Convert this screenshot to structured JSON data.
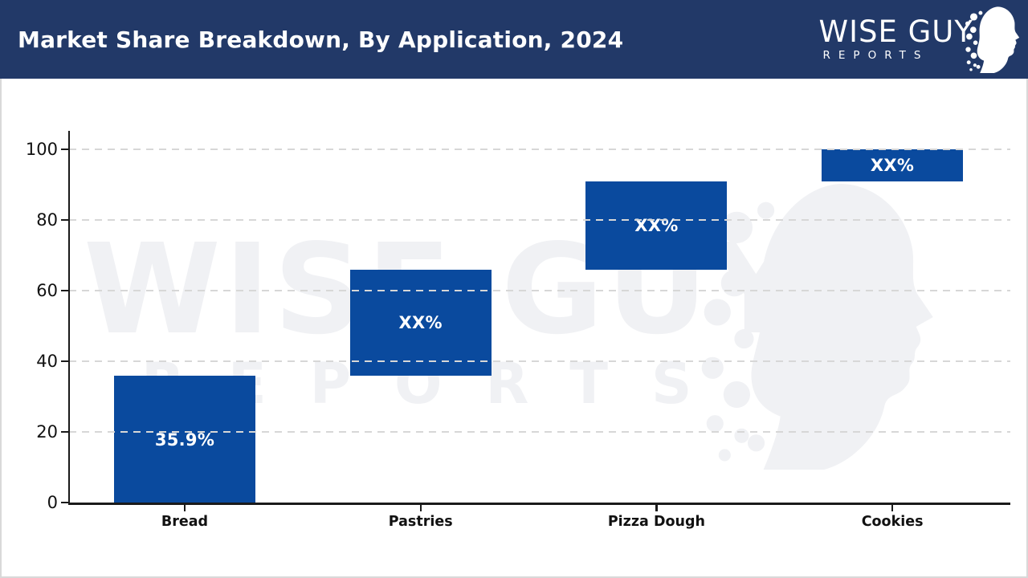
{
  "header": {
    "title": "Market Share Breakdown, By Application, 2024",
    "logo": {
      "line1": "WISE GUY",
      "line2": "REPORTS"
    }
  },
  "watermark": {
    "line1": "WISE GUY",
    "line2": "REPORTS"
  },
  "colors": {
    "header_bg": "#223968",
    "bar": "#0a4a9e",
    "grid": "#d7d7d7",
    "axis": "#1a1a1a",
    "watermark": "#f0f1f4",
    "title_text": "#ffffff",
    "bar_label_text": "#ffffff"
  },
  "chart_data": {
    "type": "bar",
    "subtype": "waterfall",
    "title": "Market Share Breakdown, By Application, 2024",
    "xlabel": "",
    "ylabel": "",
    "categories": [
      "Bread",
      "Pastries",
      "Pizza Dough",
      "Cookies"
    ],
    "segments": [
      {
        "category": "Bread",
        "start": 0,
        "end": 35.9,
        "label": "35.9%"
      },
      {
        "category": "Pastries",
        "start": 35.9,
        "end": 65.9,
        "label": "XX%"
      },
      {
        "category": "Pizza Dough",
        "start": 65.9,
        "end": 90.9,
        "label": "XX%"
      },
      {
        "category": "Cookies",
        "start": 90.9,
        "end": 100,
        "label": "XX%"
      }
    ],
    "yticks": [
      0,
      20,
      40,
      60,
      80,
      100
    ],
    "ylim": [
      0,
      105
    ],
    "grid": "horizontal-dashed",
    "gridlines_above_bars": true,
    "legend": "none",
    "bar_color": "#0a4a9e"
  }
}
